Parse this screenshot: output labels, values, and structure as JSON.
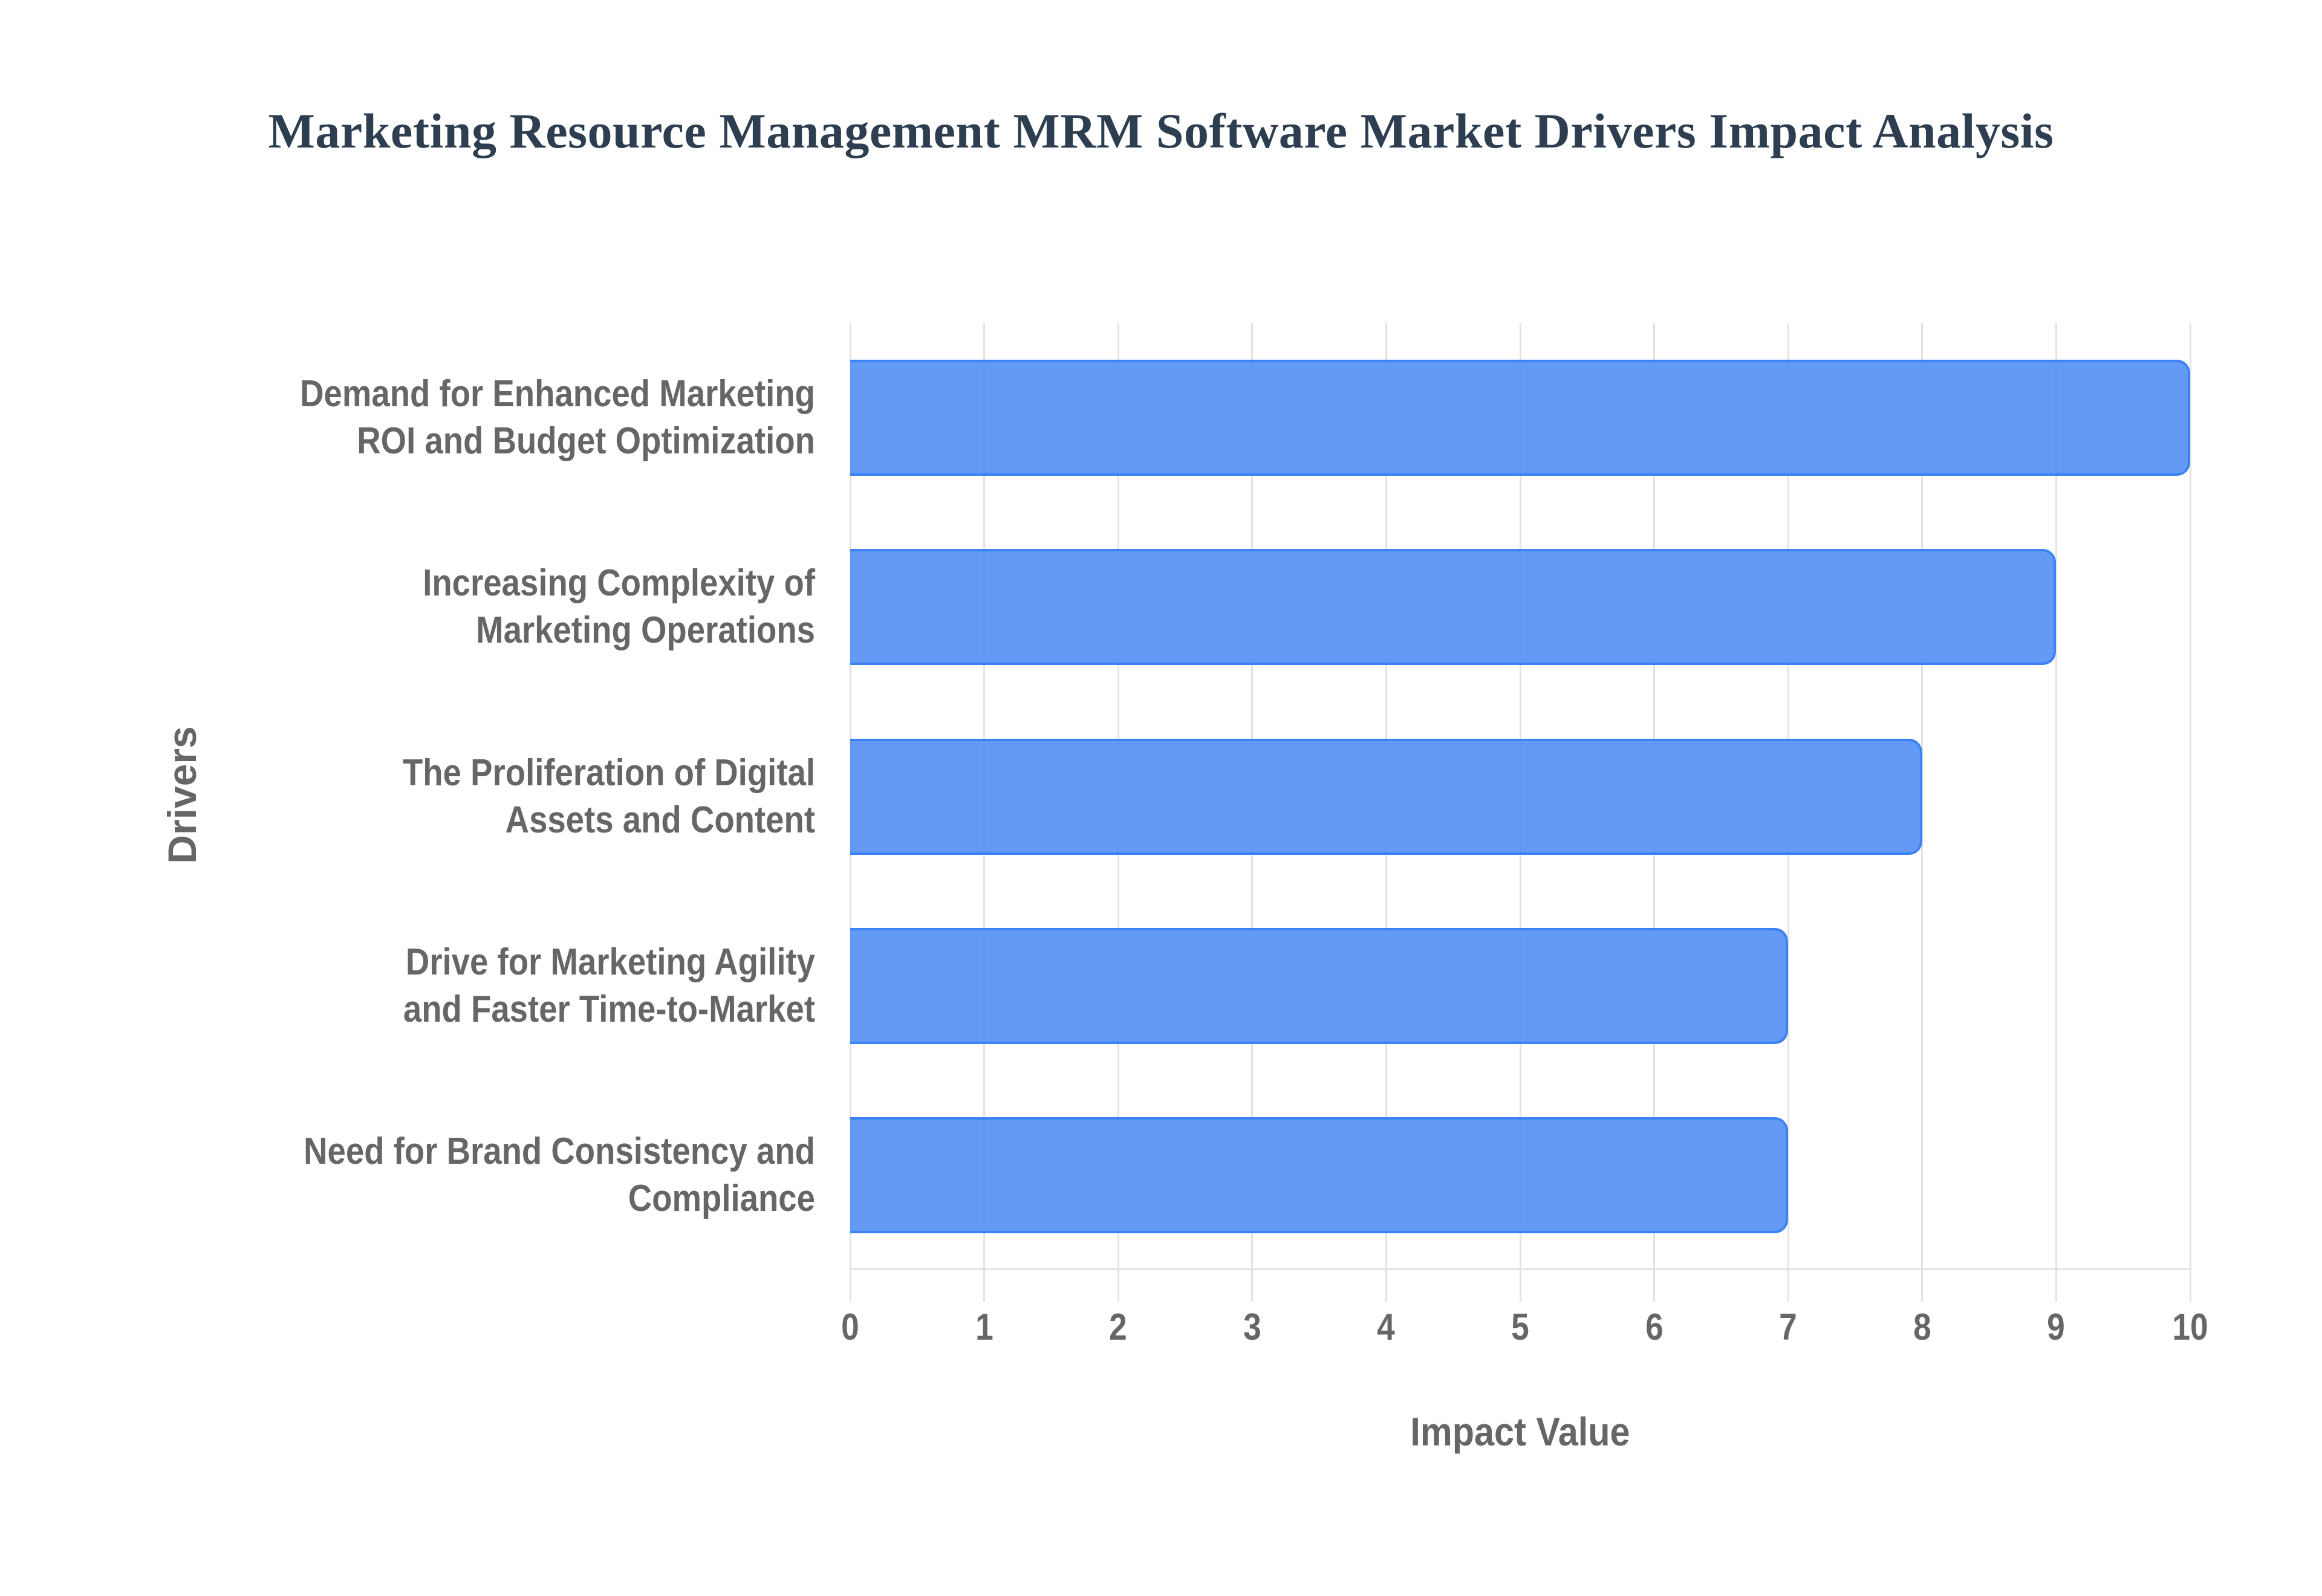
{
  "title": "Marketing Resource Management MRM Software Market Drivers Impact Analysis",
  "colors": {
    "bar_fill": "#6399f4",
    "bar_border": "#3b82f6",
    "title": "#2c3e50",
    "axis_text": "#666666",
    "grid": "#e3e3e3"
  },
  "axes": {
    "xlabel": "Impact Value",
    "ylabel": "Drivers"
  },
  "ticks": [
    "0",
    "1",
    "2",
    "3",
    "4",
    "5",
    "6",
    "7",
    "8",
    "9",
    "10"
  ],
  "categories": [
    {
      "line1": "Demand for Enhanced Marketing",
      "line2": "ROI and Budget Optimization"
    },
    {
      "line1": "Increasing Complexity of",
      "line2": "Marketing Operations"
    },
    {
      "line1": "The Proliferation of Digital",
      "line2": "Assets and Content"
    },
    {
      "line1": "Drive for Marketing Agility",
      "line2": "and Faster Time-to-Market"
    },
    {
      "line1": "Need for Brand Consistency and",
      "line2": "Compliance"
    }
  ],
  "chart_data": {
    "type": "bar",
    "orientation": "horizontal",
    "title": "Marketing Resource Management MRM Software Market Drivers Impact Analysis",
    "categories": [
      "Demand for Enhanced Marketing ROI and Budget Optimization",
      "Increasing Complexity of Marketing Operations",
      "The Proliferation of Digital Assets and Content",
      "Drive for Marketing Agility and Faster Time-to-Market",
      "Need for Brand Consistency and Compliance"
    ],
    "values": [
      10,
      9,
      8,
      7,
      7
    ],
    "xlabel": "Impact Value",
    "ylabel": "Drivers",
    "xlim": [
      0,
      10
    ],
    "xticks": [
      0,
      1,
      2,
      3,
      4,
      5,
      6,
      7,
      8,
      9,
      10
    ],
    "grid": true,
    "legend": false
  }
}
